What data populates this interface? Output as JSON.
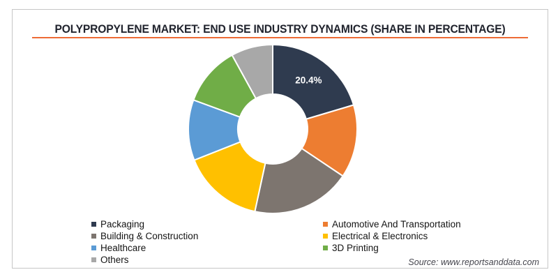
{
  "title": "POLYPROPYLENE MARKET: END USE INDUSTRY DYNAMICS (SHARE IN PERCENTAGE)",
  "source": "Source: www.reportsanddata.com",
  "accent_color": "#ed6b35",
  "border_color": "#c6c6c6",
  "chart_data": {
    "type": "pie",
    "subtype": "donut",
    "title": "POLYPROPYLENE MARKET: END USE INDUSTRY DYNAMICS (SHARE IN PERCENTAGE)",
    "start_angle_deg": 0,
    "direction": "clockwise",
    "inner_radius_ratio": 0.41,
    "legend_position": "bottom",
    "series": [
      {
        "name": "Packaging",
        "value": 20.4,
        "color": "#2f3b4f",
        "data_label": "20.4%"
      },
      {
        "name": "Automotive And Transportation",
        "value": 14.0,
        "color": "#ed7d31",
        "data_label": ""
      },
      {
        "name": "Building & Construction",
        "value": 19.0,
        "color": "#7d756f",
        "data_label": ""
      },
      {
        "name": "Electrical & Electronics",
        "value": 15.6,
        "color": "#ffc000",
        "data_label": ""
      },
      {
        "name": "Healthcare",
        "value": 11.6,
        "color": "#5b9bd5",
        "data_label": ""
      },
      {
        "name": "3D Printing",
        "value": 11.4,
        "color": "#70ad47",
        "data_label": ""
      },
      {
        "name": "Others",
        "value": 8.0,
        "color": "#a8a8a8",
        "data_label": ""
      }
    ],
    "legend_columns": [
      [
        "Packaging",
        "Building & Construction",
        "Healthcare",
        "Others"
      ],
      [
        "Automotive And Transportation",
        "Electrical & Electronics",
        "3D Printing"
      ]
    ]
  }
}
